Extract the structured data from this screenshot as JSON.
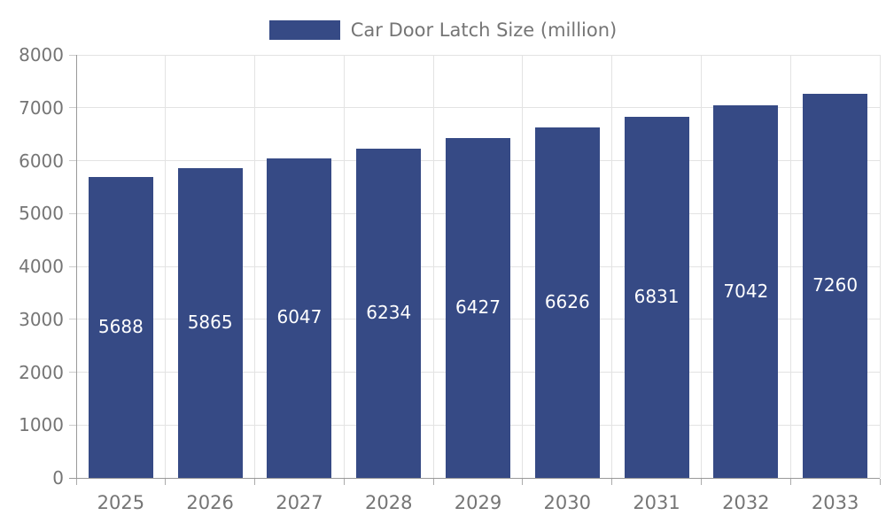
{
  "legend": {
    "label": "Car Door Latch Size (million)",
    "swatch_color": "#364a85"
  },
  "chart_data": {
    "type": "bar",
    "title": "Car Door Latch Size (million)",
    "categories": [
      "2025",
      "2026",
      "2027",
      "2028",
      "2029",
      "2030",
      "2031",
      "2032",
      "2033"
    ],
    "values": [
      5688,
      5865,
      6047,
      6234,
      6427,
      6626,
      6831,
      7042,
      7260
    ],
    "xlabel": "",
    "ylabel": "",
    "ylim": [
      0,
      8000
    ],
    "ytick_step": 1000,
    "ytick_labels": [
      "0",
      "1000",
      "2000",
      "3000",
      "4000",
      "5000",
      "6000",
      "7000",
      "8000"
    ],
    "grid": true,
    "legend_position": "top-center",
    "bar_color": "#364a85",
    "value_label_color": "#ffffff",
    "axis_text_color": "#757575",
    "axis_line_color": "#999999",
    "gridline_color": "#e3e3e3"
  }
}
